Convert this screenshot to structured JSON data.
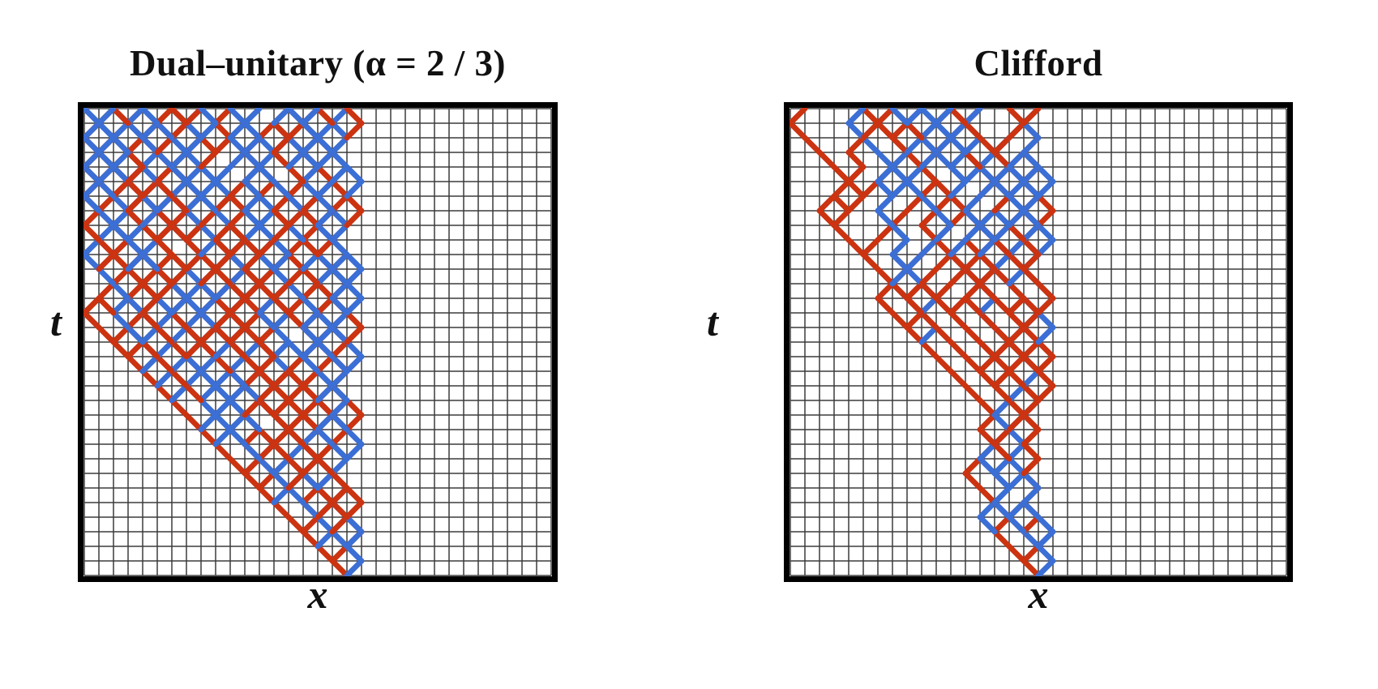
{
  "panels": [
    {
      "id": "dual-unitary",
      "title": "Dual–unitary (α = 2 / 3)",
      "ylabel": "t",
      "xlabel": "x",
      "grid": {
        "cols": 32,
        "rows": 32,
        "cell": 18
      },
      "pattern": {
        "type": "branching-light-cone",
        "apex_col": 18,
        "edge_prob": 1.0,
        "keep_prob": 0.5,
        "branch_prob": 0.55,
        "max_walkers": 30,
        "seed": 9001
      }
    },
    {
      "id": "clifford",
      "title": "Clifford",
      "ylabel": "t",
      "xlabel": "x",
      "grid": {
        "cols": 34,
        "rows": 32,
        "cell": 18
      },
      "pattern": {
        "type": "branching-light-cone",
        "apex_col": 17,
        "edge_prob": 0.72,
        "keep_prob": 0.62,
        "branch_prob": 0.34,
        "max_walkers": 17,
        "seed": 4242
      }
    }
  ],
  "colors": {
    "red_line": "#cc3311",
    "blue_line": "#3b6fd6",
    "grid_line": "#3b3b3b",
    "frame": "#000000",
    "background": "#ffffff"
  },
  "style": {
    "line_width": 6.8,
    "grid_width": 1.5,
    "frame_width": 7
  },
  "description": "Space-time spreading diagrams: red and blue 45-degree trajectories branching upward from a single point at the bottom of a square grid; dual-unitary spreading fills the full light cone, Clifford spreading is narrower with ragged edges."
}
